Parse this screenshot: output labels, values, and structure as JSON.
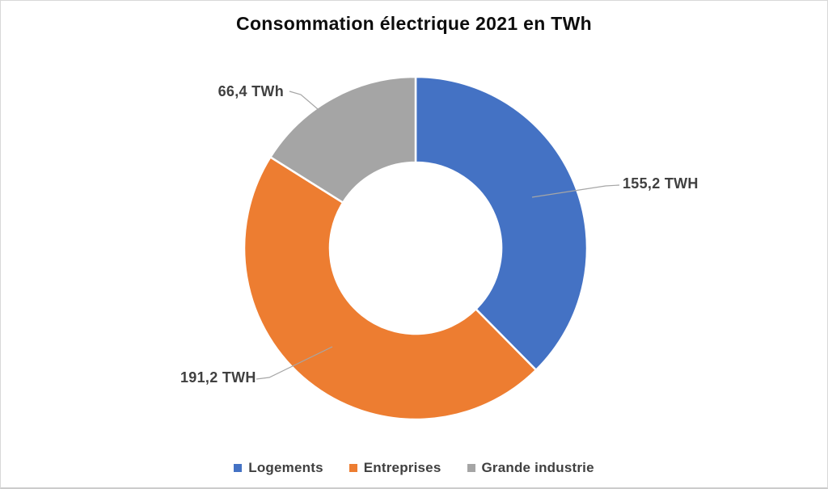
{
  "title": "Consommation électrique 2021 en TWh",
  "chart_data": {
    "type": "pie",
    "subtype": "donut",
    "title": "Consommation électrique 2021 en TWh",
    "unit": "TWh",
    "year": "2021",
    "categories": [
      "Logements",
      "Entreprises",
      "Grande industrie"
    ],
    "values": [
      155.2,
      191.2,
      66.4
    ],
    "data_labels": [
      "155,2 TWH",
      "191,2 TWH",
      "66,4 TWh"
    ],
    "colors": [
      "#4472C4",
      "#ED7D31",
      "#A5A5A5"
    ],
    "start_angle_deg": 0,
    "direction": "clockwise",
    "inner_radius_ratio": 0.5,
    "legend_position": "bottom",
    "leader_line_color": "#A6A6A6",
    "label_color": "#404040"
  },
  "legend": {
    "items": [
      {
        "label": "Logements",
        "color": "#4472C4"
      },
      {
        "label": "Entreprises",
        "color": "#ED7D31"
      },
      {
        "label": "Grande industrie",
        "color": "#A5A5A5"
      }
    ]
  }
}
